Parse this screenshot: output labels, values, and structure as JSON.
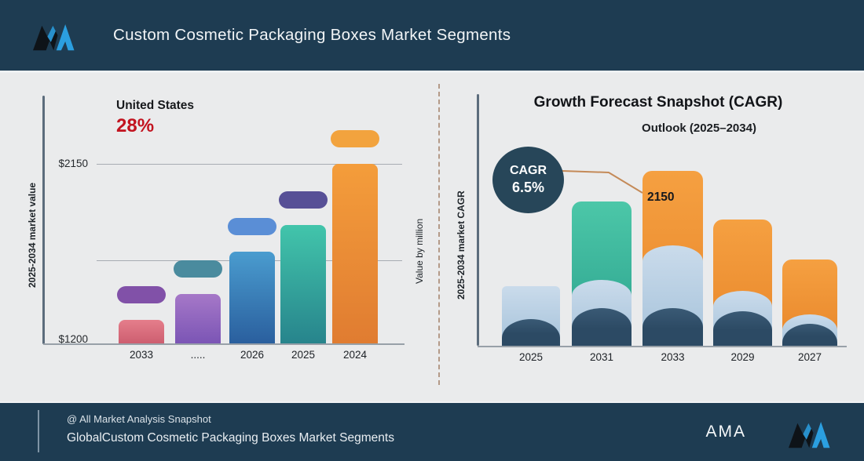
{
  "header": {
    "title": "Custom Cosmetic Packaging Boxes Market Segments",
    "logo": "AMA mountain logo"
  },
  "left_panel": {
    "region_label": "United States",
    "region_value": "28%"
  },
  "right_panel": {
    "cagr_badge": {
      "label": "CAGR",
      "value": "6.5%"
    }
  },
  "footer": {
    "line1": "@ All Market Analysis Snapshot",
    "line2": "GlobalCustom Cosmetic Packaging Boxes Market Segments",
    "brand": "AMA"
  },
  "colors": {
    "header_bg": "#1e3c52",
    "panel_bg": "#eaebec",
    "accent_red": "#c2131f",
    "logo_black": "#0e1318",
    "logo_blue": "#2b9fe0",
    "navy_segment_top": "#3a5a75",
    "navy_segment_bottom": "#2c4a64",
    "lightblue_top": "#cadbeb",
    "lightblue_bottom": "#a5c2da",
    "teal_top": "#4cc7a8",
    "teal_bottom": "#2ba18d",
    "orange_top": "#f5a041",
    "orange_bottom": "#e8862a",
    "badge_bg": "#274659",
    "connector": "#c48a58"
  },
  "chart_data": [
    {
      "type": "bar",
      "title": "United States",
      "highlight": "28%",
      "categories": [
        "2033",
        ".....",
        "2026",
        "2025",
        "2024"
      ],
      "values": [
        1325,
        1460,
        1685,
        1825,
        2150
      ],
      "bar_colors_top": [
        "#e57e8b",
        "#a678c8",
        "#4a9ccf",
        "#42c5ab",
        "#f49d3b"
      ],
      "bar_colors_bottom": [
        "#cd5e70",
        "#7b55b5",
        "#2a5f9e",
        "#27848c",
        "#e07c31"
      ],
      "cap_colors": [
        "#8151a8",
        "#4a8b9e",
        "#5a8ed6",
        "#575096",
        "#f2a33e"
      ],
      "ylabel": "2025-2034 market value",
      "ylabel_right": "Value by million",
      "ylim": [
        1200,
        2150
      ],
      "yticks": [
        {
          "label": "$1200",
          "value": 1200
        },
        {
          "label": "$2150",
          "value": 2150
        }
      ],
      "gridline_values": [
        2150,
        1640
      ],
      "legend": "none",
      "grid": "horizontal"
    },
    {
      "type": "stacked-bar",
      "title": "Growth Forecast Snapshot (CAGR)",
      "subtitle": "Outlook (2025–2034)",
      "cagr_label": "CAGR",
      "cagr_value": "6.5%",
      "categories": [
        "2025",
        "2031",
        "2033",
        "2029",
        "2027"
      ],
      "series": [
        {
          "name": "base",
          "values": [
            328,
            463,
            463,
            424,
            270
          ]
        },
        {
          "name": "middle",
          "values": [
            405,
            347,
            771,
            251,
            116
          ]
        },
        {
          "name": "top",
          "values": [
            0,
            964,
            916,
            877,
            675
          ]
        }
      ],
      "top_segment_style": [
        "lightblue",
        "teal",
        "orange",
        "orange",
        "orange"
      ],
      "annotation": {
        "label": "2150",
        "category": "2033"
      },
      "ylabel": "2025-2034 market CAGR",
      "axis_max": 2150,
      "legend": "none",
      "grid": "off"
    }
  ]
}
